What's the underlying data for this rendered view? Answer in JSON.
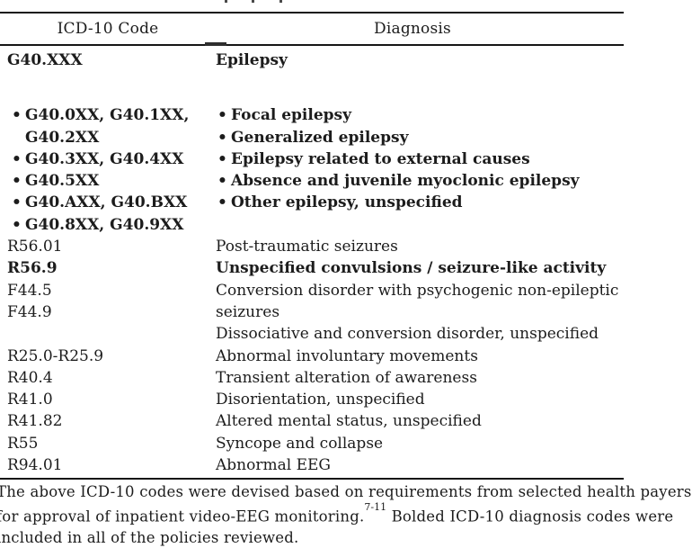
{
  "table": {
    "header": {
      "col1": "ICD-10 Code",
      "col2": "Diagnosis"
    },
    "bullet_char": "•",
    "lines": [
      {
        "c1": {
          "text": "G40.XXX",
          "bold": true
        },
        "c2": {
          "text": "Epilepsy",
          "bold": true
        }
      },
      {
        "spacer": 37
      },
      {
        "c1": {
          "text": "G40.0XX, G40.1XX,",
          "bold": true,
          "bullet": true
        },
        "c2": {
          "text": "Focal epilepsy",
          "bold": true,
          "bullet": true
        }
      },
      {
        "c1": {
          "text": "G40.2XX",
          "bold": true,
          "indent": true
        },
        "c2": {
          "text": "Generalized epilepsy",
          "bold": true,
          "bullet": true
        }
      },
      {
        "c1": {
          "text": "G40.3XX, G40.4XX",
          "bold": true,
          "bullet": true
        },
        "c2": {
          "text": "Epilepsy related to external causes",
          "bold": true,
          "bullet": true
        }
      },
      {
        "c1": {
          "text": "G40.5XX",
          "bold": true,
          "bullet": true
        },
        "c2": {
          "text": "Absence and juvenile myoclonic epilepsy",
          "bold": true,
          "bullet": true
        }
      },
      {
        "c1": {
          "text": "G40.AXX, G40.BXX",
          "bold": true,
          "bullet": true
        },
        "c2": {
          "text": "Other epilepsy, unspecified",
          "bold": true,
          "bullet": true
        }
      },
      {
        "c1": {
          "text": "G40.8XX, G40.9XX",
          "bold": true,
          "bullet": true
        },
        "c2": null
      },
      {
        "c1": {
          "text": "R56.01"
        },
        "c2": {
          "text": "Post-traumatic seizures"
        }
      },
      {
        "c1": {
          "text": "R56.9",
          "bold": true
        },
        "c2": {
          "text": "Unspecified convulsions / seizure-like activity",
          "bold": true
        }
      },
      {
        "c1": {
          "text": "F44.5"
        },
        "c2": {
          "text": "Conversion disorder with psychogenic non-epileptic"
        }
      },
      {
        "c1": {
          "text": "F44.9"
        },
        "c2": {
          "text": "seizures"
        }
      },
      {
        "c1": null,
        "c2": {
          "text": "Dissociative and conversion disorder, unspecified"
        }
      },
      {
        "c1": {
          "text": "R25.0-R25.9"
        },
        "c2": {
          "text": "Abnormal involuntary movements"
        }
      },
      {
        "c1": {
          "text": "R40.4"
        },
        "c2": {
          "text": "Transient alteration of awareness"
        }
      },
      {
        "c1": {
          "text": "R41.0"
        },
        "c2": {
          "text": "Disorientation, unspecified"
        }
      },
      {
        "c1": {
          "text": "R41.82"
        },
        "c2": {
          "text": "Altered mental status, unspecified"
        }
      },
      {
        "c1": {
          "text": "R55"
        },
        "c2": {
          "text": "Syncope and collapse"
        }
      },
      {
        "c1": {
          "text": "R94.01"
        },
        "c2": {
          "text": "Abnormal EEG"
        }
      }
    ]
  },
  "footnote": {
    "line1": "The above ICD-10 codes were devised based on requirements from selected health payers",
    "line2_pre": "for approval of inpatient video-EEG monitoring.",
    "line2_sup": "7-11",
    "line2_post": " Bolded ICD-10 diagnosis codes were",
    "line3": "included in all of the policies reviewed."
  },
  "colors": {
    "text": "#1c1c1c",
    "rule": "#161616",
    "background": "#ffffff"
  }
}
